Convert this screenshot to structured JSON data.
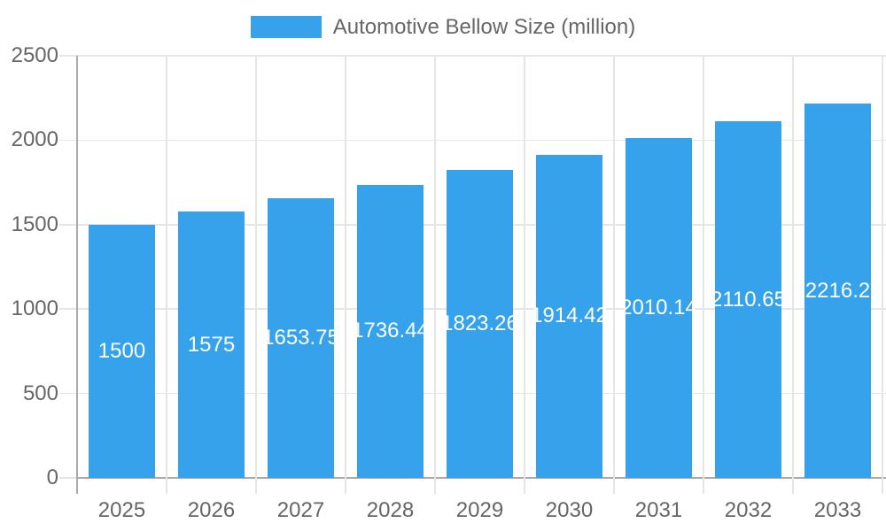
{
  "chart_data": {
    "type": "bar",
    "title": "Automotive Bellow Size (million)",
    "legend": {
      "label": "Automotive Bellow Size (million)",
      "position": "top"
    },
    "categories": [
      "2025",
      "2026",
      "2027",
      "2028",
      "2029",
      "2030",
      "2031",
      "2032",
      "2033"
    ],
    "series": [
      {
        "name": "Automotive Bellow Size (million)",
        "values": [
          1500,
          1575,
          1653.75,
          1736.44,
          1823.26,
          1914.42,
          2010.14,
          2110.65,
          2216.2
        ],
        "labels": [
          "1500",
          "1575",
          "1653.75",
          "1736.44",
          "1823.26",
          "1914.42",
          "2010.14",
          "2110.65",
          "2216.2"
        ]
      }
    ],
    "xlabel": "",
    "ylabel": "",
    "ylim": [
      0,
      2500
    ],
    "yticks": [
      0,
      500,
      1000,
      1500,
      2000,
      2500
    ],
    "ytick_labels": [
      "0",
      "500",
      "1000",
      "1500",
      "2000",
      "2500"
    ],
    "grid": true,
    "colors": {
      "bar": "#36A2EB",
      "axis_text": "#666666",
      "gridline": "#E5E5E5",
      "axis_line": "#AAAAAA",
      "value_label": "#FFFFFF",
      "background": "#FFFFFF"
    }
  }
}
